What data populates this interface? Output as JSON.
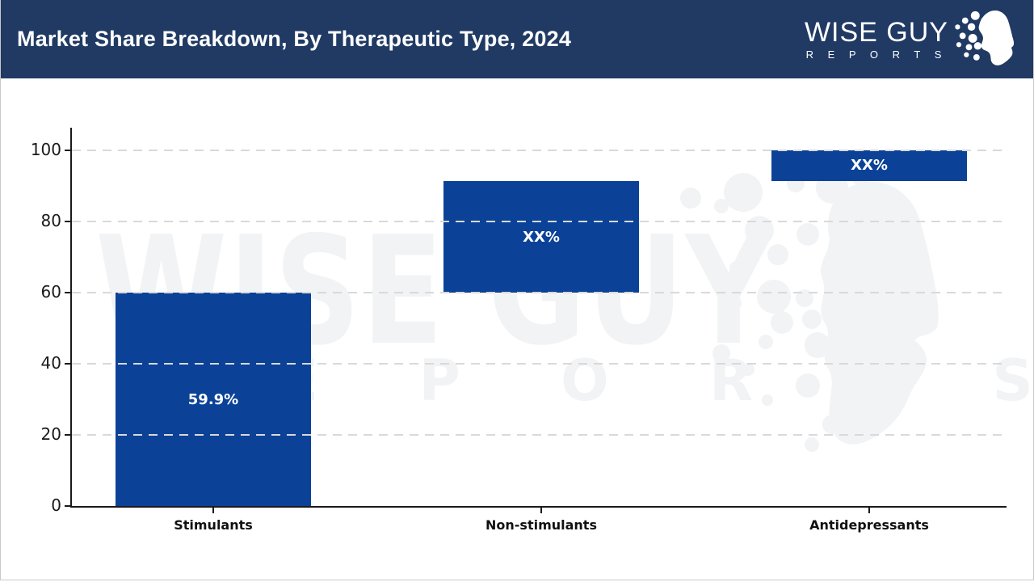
{
  "header": {
    "title": "Market Share Breakdown, By Therapeutic Type, 2024",
    "logo": {
      "line1": "WISE GUY",
      "line2": "R E P O R T S"
    }
  },
  "watermark": {
    "line1": "WISE GUY",
    "line2": "R E P O R T S"
  },
  "colors": {
    "header_bg": "#203A64",
    "bar": "#0B4298",
    "bar_label": "#FFFFFF",
    "axis": "#1A1A1A",
    "gridline": "#D9D9D9",
    "watermark": "#F2F3F5",
    "frame_line": "#C9C9C9"
  },
  "chart_data": {
    "type": "bar",
    "subtype": "waterfall",
    "title": "Market Share Breakdown, By Therapeutic Type, 2024",
    "categories": [
      "Stimulants",
      "Non-stimulants",
      "Antidepressants"
    ],
    "segments": [
      {
        "category": "Stimulants",
        "start": 0,
        "end": 59.9,
        "label": "59.9%"
      },
      {
        "category": "Non-stimulants",
        "start": 59.9,
        "end": 91.4,
        "label": "XX%"
      },
      {
        "category": "Antidepressants",
        "start": 91.4,
        "end": 100,
        "label": "XX%"
      }
    ],
    "values": [
      59.9,
      31.5,
      8.6
    ],
    "ylim": [
      0,
      100
    ],
    "yticks": [
      0,
      20,
      40,
      60,
      80,
      100
    ],
    "xlabel": "",
    "ylabel": "",
    "grid": "horizontal-dashed",
    "legend": "none",
    "bar_color": "#0B4298"
  }
}
